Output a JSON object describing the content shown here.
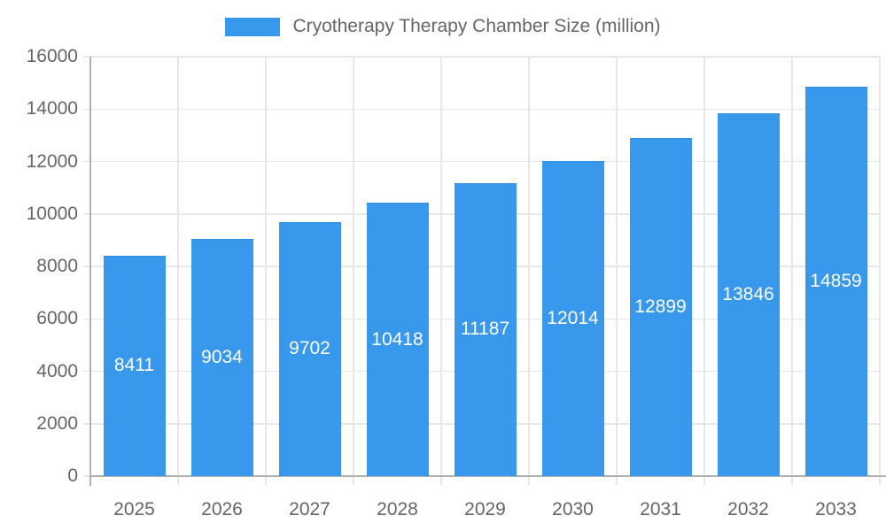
{
  "legend": {
    "label": "Cryotherapy Therapy Chamber Size (million)"
  },
  "chart_data": {
    "type": "bar",
    "title": "Cryotherapy Therapy Chamber Size (million)",
    "categories": [
      "2025",
      "2026",
      "2027",
      "2028",
      "2029",
      "2030",
      "2031",
      "2032",
      "2033"
    ],
    "values": [
      8411,
      9034,
      9702,
      10418,
      11187,
      12014,
      12899,
      13846,
      14859
    ],
    "series_name": "Cryotherapy Therapy Chamber Size (million)",
    "xlabel": "",
    "ylabel": "",
    "ylim": [
      0,
      16000
    ],
    "yticks": [
      0,
      2000,
      4000,
      6000,
      8000,
      10000,
      12000,
      14000,
      16000
    ],
    "grid": true,
    "legend_position": "top-center",
    "value_labels": "inside-center",
    "colors": {
      "bar": "#3899ec",
      "bar_border": "#2e8ee2",
      "grid": "#e7e7e7",
      "axis": "#b0b0b0",
      "text": "#666666",
      "value_label": "#ffffff"
    }
  }
}
